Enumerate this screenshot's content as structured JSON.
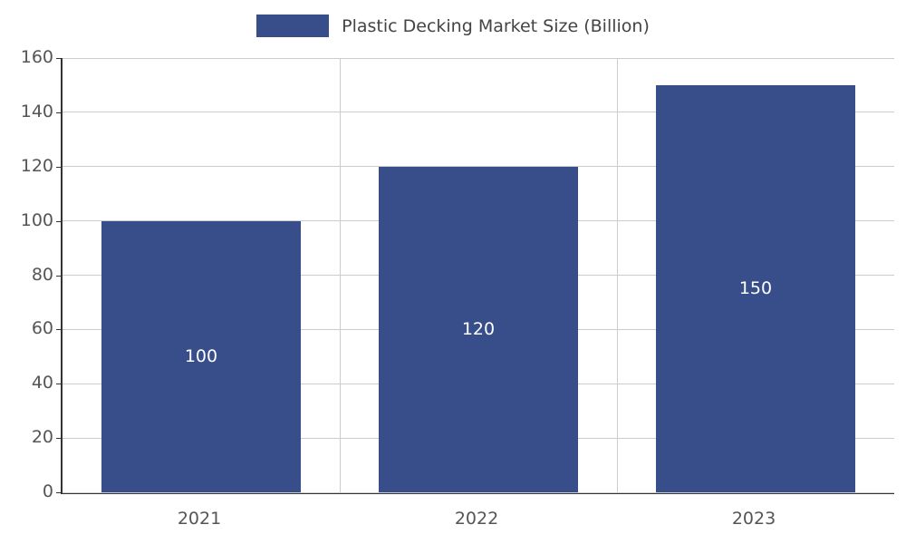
{
  "chart_data": {
    "type": "bar",
    "title": "Plastic Decking Market Size (Billion)",
    "categories": [
      "2021",
      "2022",
      "2023"
    ],
    "values": [
      100,
      120,
      150
    ],
    "data_labels": [
      "100",
      "120",
      "150"
    ],
    "yticks": [
      0,
      20,
      40,
      60,
      80,
      100,
      120,
      140,
      160
    ],
    "ylim": [
      0,
      160
    ],
    "xlabel": "",
    "ylabel": "",
    "grid": true,
    "legend_position": "top",
    "colors": {
      "bar": "#374e8b",
      "bar_label": "#ffffff",
      "gridline": "#cccccc",
      "axis": "#333333",
      "tick_label": "#555555",
      "legend_text": "#444444"
    }
  }
}
